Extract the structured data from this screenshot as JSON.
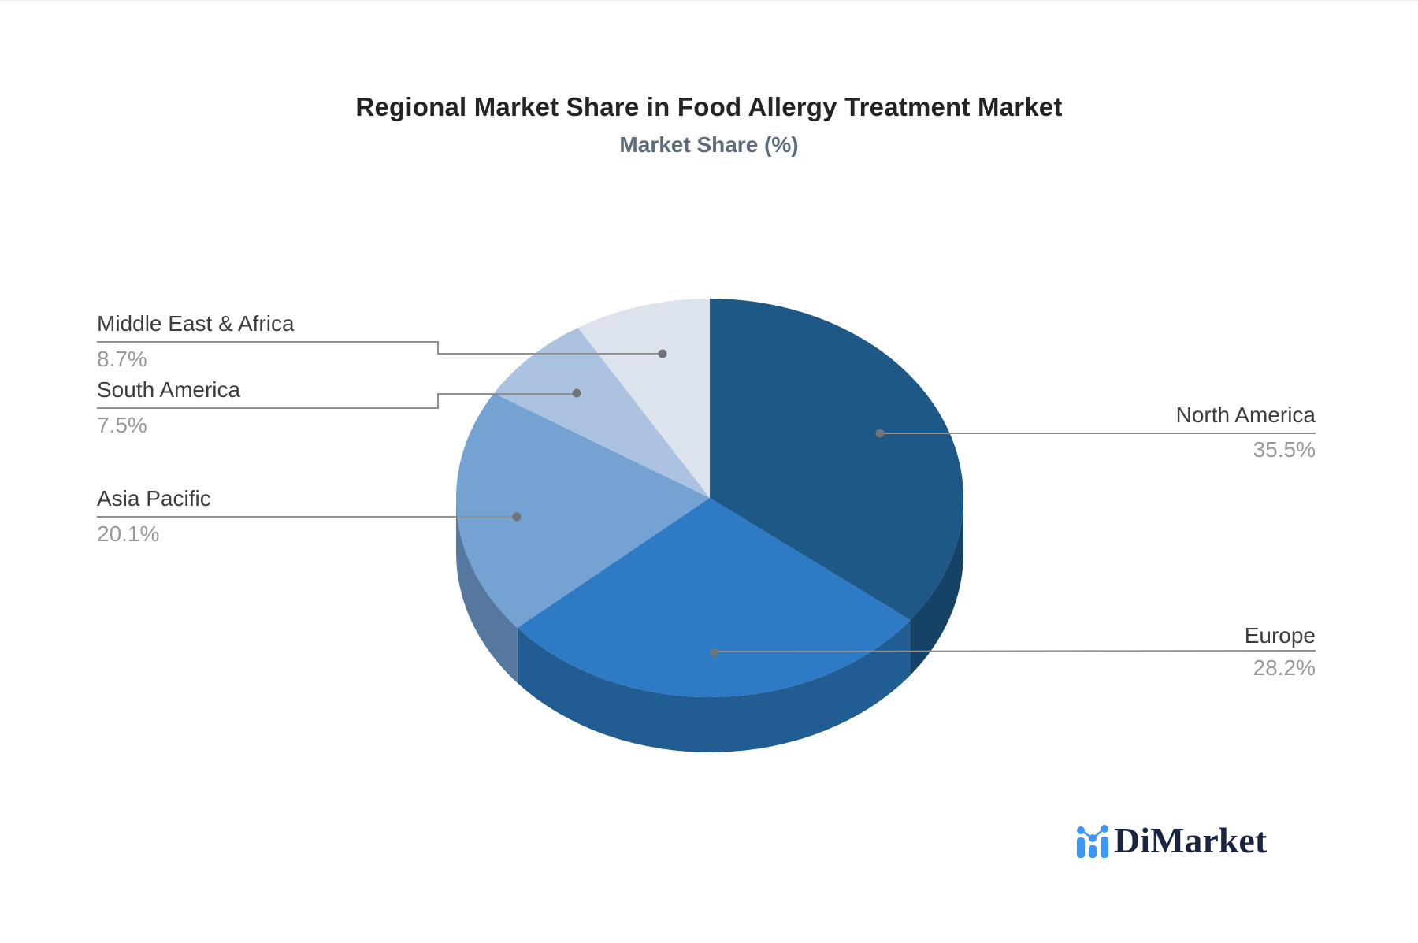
{
  "title": "Regional Market Share in Food Allergy Treatment Market",
  "subtitle": "Market Share (%)",
  "brand": {
    "name": "DiMarket",
    "icon": "bar-chart-logo-icon",
    "icon_color": "#3e97f5",
    "text_color": "#1b2540"
  },
  "chart_data": {
    "type": "pie",
    "title": "Regional Market Share in Food Allergy Treatment Market",
    "subtitle": "Market Share (%)",
    "unit": "%",
    "effect": "3d",
    "start_angle_deg": 0,
    "direction": "clockwise",
    "legend_position": "none",
    "labels": "callouts-with-leader-lines",
    "leader_line_color": "#8f9092",
    "leader_dot_color": "#717477",
    "label_text_color": "#3a3c3e",
    "value_text_color": "#97999c",
    "slices": [
      {
        "label": "North America",
        "value": 35.5,
        "display": "35.5%",
        "color": "#1d5887",
        "side_color": "#164266"
      },
      {
        "label": "Europe",
        "value": 28.2,
        "display": "28.2%",
        "color": "#2e7ac4",
        "side_color": "#215c93"
      },
      {
        "label": "Asia Pacific",
        "value": 20.1,
        "display": "20.1%",
        "color": "#73a2d3",
        "side_color": "#56789f"
      },
      {
        "label": "South America",
        "value": 7.5,
        "display": "7.5%",
        "color": "#abc3e0",
        "side_color": "#8194ac"
      },
      {
        "label": "Middle East & Africa",
        "value": 8.7,
        "display": "8.7%",
        "color": "#dde3ed",
        "side_color": "#a6abb4"
      }
    ]
  }
}
